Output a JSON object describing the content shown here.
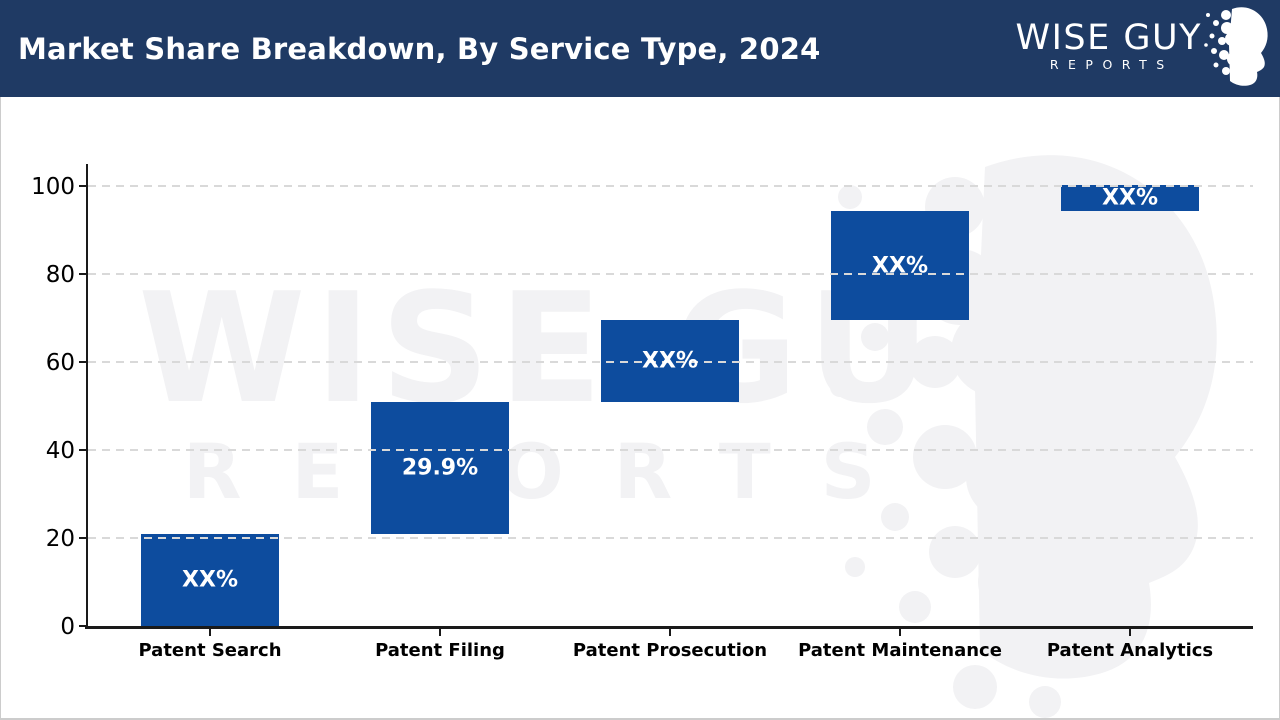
{
  "header": {
    "title": "Market Share Breakdown, By Service Type, 2024",
    "bg_color": "#1f3a64",
    "logo": {
      "line1": "WISE GUY",
      "line2": "REPORTS"
    }
  },
  "watermark": {
    "line1": "WISE GUY",
    "line2": "REPORTS"
  },
  "chart_data": {
    "type": "bar",
    "subtype": "waterfall",
    "title": "Market Share Breakdown, By Service Type, 2024",
    "xlabel": "",
    "ylabel": "",
    "categories": [
      "Patent Search",
      "Patent Filing",
      "Patent Prosecution",
      "Patent Maintenance",
      "Patent Analytics"
    ],
    "segments": [
      {
        "category": "Patent Search",
        "start": 0,
        "end": 21,
        "label": "XX%"
      },
      {
        "category": "Patent Filing",
        "start": 21,
        "end": 50.9,
        "label": "29.9%"
      },
      {
        "category": "Patent Prosecution",
        "start": 50.9,
        "end": 69.5,
        "label": "XX%"
      },
      {
        "category": "Patent Maintenance",
        "start": 69.5,
        "end": 94.3,
        "label": "XX%"
      },
      {
        "category": "Patent Analytics",
        "start": 94.3,
        "end": 100.2,
        "label": "XX%"
      }
    ],
    "yticks": [
      0,
      20,
      40,
      60,
      80,
      100
    ],
    "ylim": [
      0,
      105
    ],
    "grid": "horizontal-dashed",
    "legend": "none",
    "bar_color": "#0d4c9e",
    "bar_label_color": "#ffffff",
    "grid_color": "#d9d9d9",
    "axis_color": "#1a1a1a"
  }
}
